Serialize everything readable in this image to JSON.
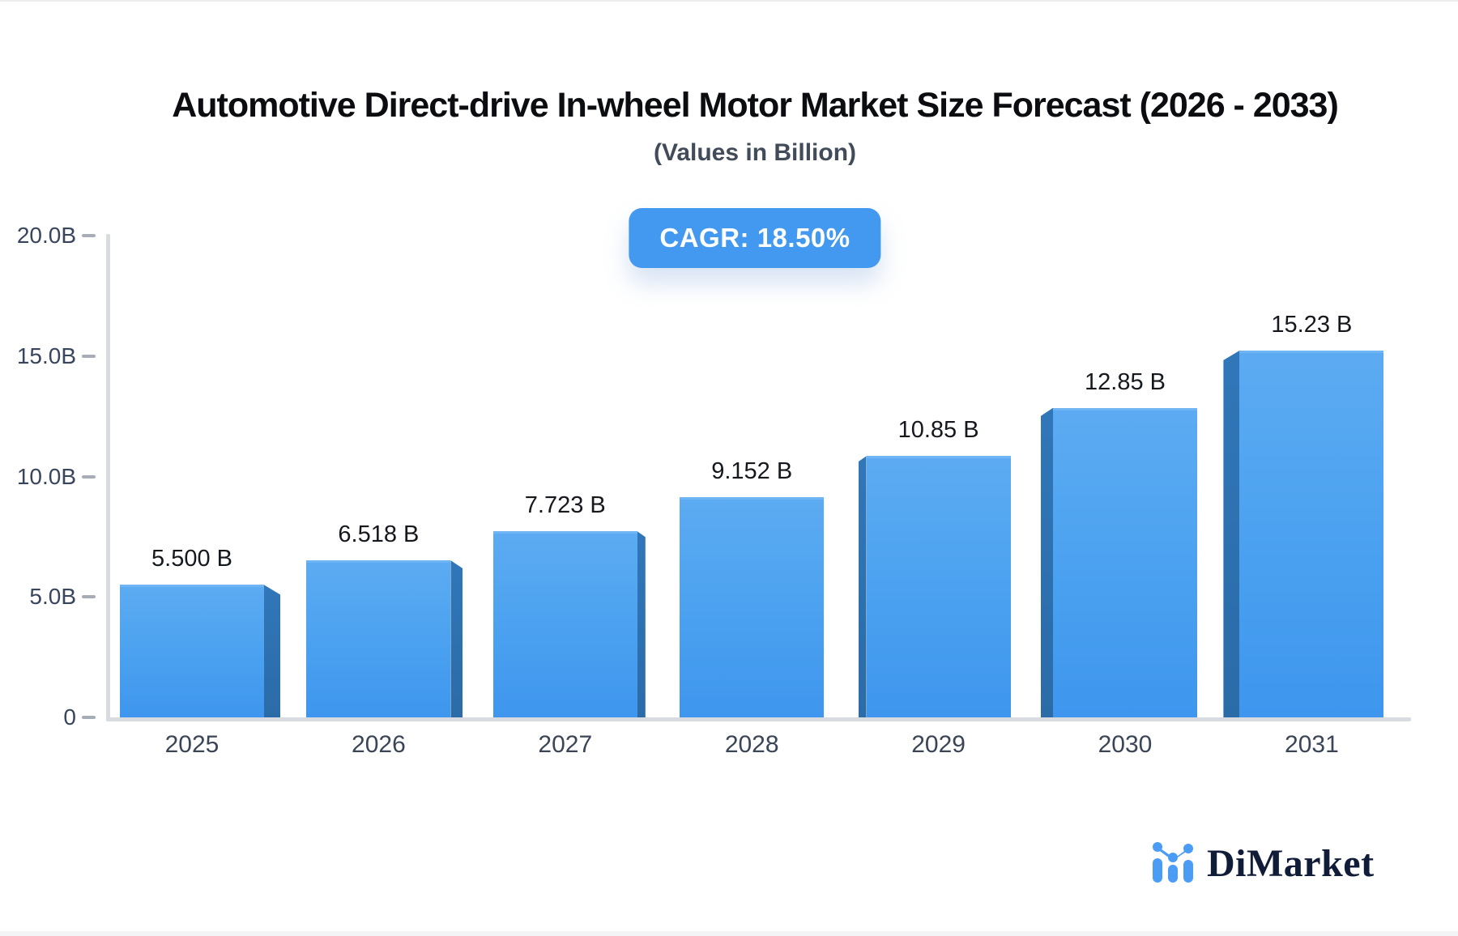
{
  "header": {
    "title": "Automotive Direct-drive In-wheel Motor Market Size Forecast (2026 - 2033)",
    "subtitle": "(Values in Billion)",
    "cagr_label": "CAGR: 18.50%"
  },
  "chart_data": {
    "type": "bar",
    "title": "Automotive Direct-drive In-wheel Motor Market Size Forecast (2026 - 2033)",
    "subtitle": "(Values in Billion)",
    "cagr_percent": 18.5,
    "categories": [
      "2025",
      "2026",
      "2027",
      "2028",
      "2029",
      "2030",
      "2031"
    ],
    "values": [
      5.5,
      6.518,
      7.723,
      9.152,
      10.85,
      12.85,
      15.23
    ],
    "value_labels": [
      "5.500 B",
      "6.518 B",
      "7.723 B",
      "9.152 B",
      "10.85 B",
      "12.85 B",
      "15.23 B"
    ],
    "xlabel": "",
    "ylabel": "",
    "ylim": [
      0,
      20
    ],
    "yticks": [
      {
        "value": 0,
        "label": "0"
      },
      {
        "value": 5,
        "label": "5.0B"
      },
      {
        "value": 10,
        "label": "10.0B"
      },
      {
        "value": 15,
        "label": "15.0B"
      },
      {
        "value": 20,
        "label": "20.0B"
      }
    ],
    "grid": false,
    "legend": false,
    "bar_style": "3d-perspective"
  },
  "branding": {
    "name": "DiMarket",
    "logo_icon": "bar-line-chart-icon"
  },
  "colors": {
    "accent_blue": "#4299ef",
    "bar_face_top": "#5cabf2",
    "bar_face_bottom": "#3e96ee",
    "bar_side": "#2d70b0",
    "axis_gray": "#d8dbdf",
    "badge_text": "#ffffff",
    "brand_navy": "#111c38",
    "title_text": "#0b0d11"
  }
}
